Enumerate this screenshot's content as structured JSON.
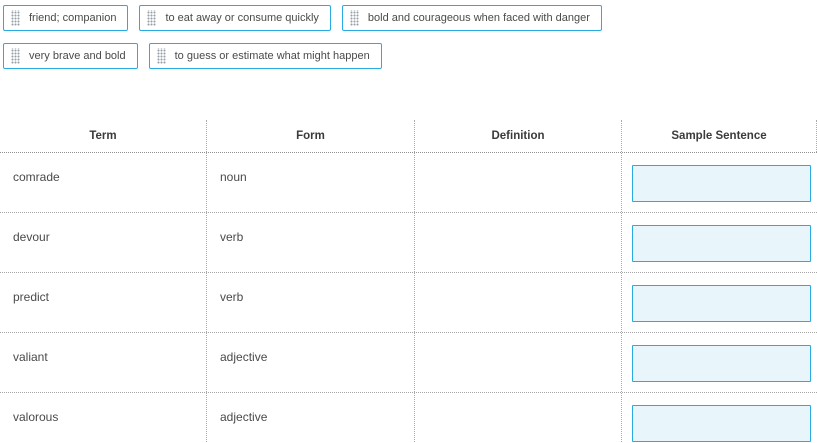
{
  "word_bank": {
    "chips": [
      {
        "label": "friend; companion"
      },
      {
        "label": "to eat away or consume quickly"
      },
      {
        "label": "bold and courageous when faced with danger"
      },
      {
        "label": "very brave and bold"
      },
      {
        "label": "to guess or estimate what might happen"
      }
    ]
  },
  "table": {
    "columns": [
      {
        "label": "Term"
      },
      {
        "label": "Form"
      },
      {
        "label": "Definition"
      },
      {
        "label": "Sample Sentence"
      }
    ],
    "rows": [
      {
        "term": "comrade",
        "form": "noun",
        "definition": ""
      },
      {
        "term": "devour",
        "form": "verb",
        "definition": ""
      },
      {
        "term": "predict",
        "form": "verb",
        "definition": ""
      },
      {
        "term": "valiant",
        "form": "adjective",
        "definition": ""
      },
      {
        "term": "valorous",
        "form": "adjective",
        "definition": ""
      }
    ]
  },
  "colors": {
    "accent": "#29abe2",
    "dropzone_fill": "#e8f6fc",
    "text": "#4a4a4a",
    "header_text": "#3b3b3b",
    "divider": "#a5a5a5",
    "grip_dots": "#9aa1a8"
  }
}
